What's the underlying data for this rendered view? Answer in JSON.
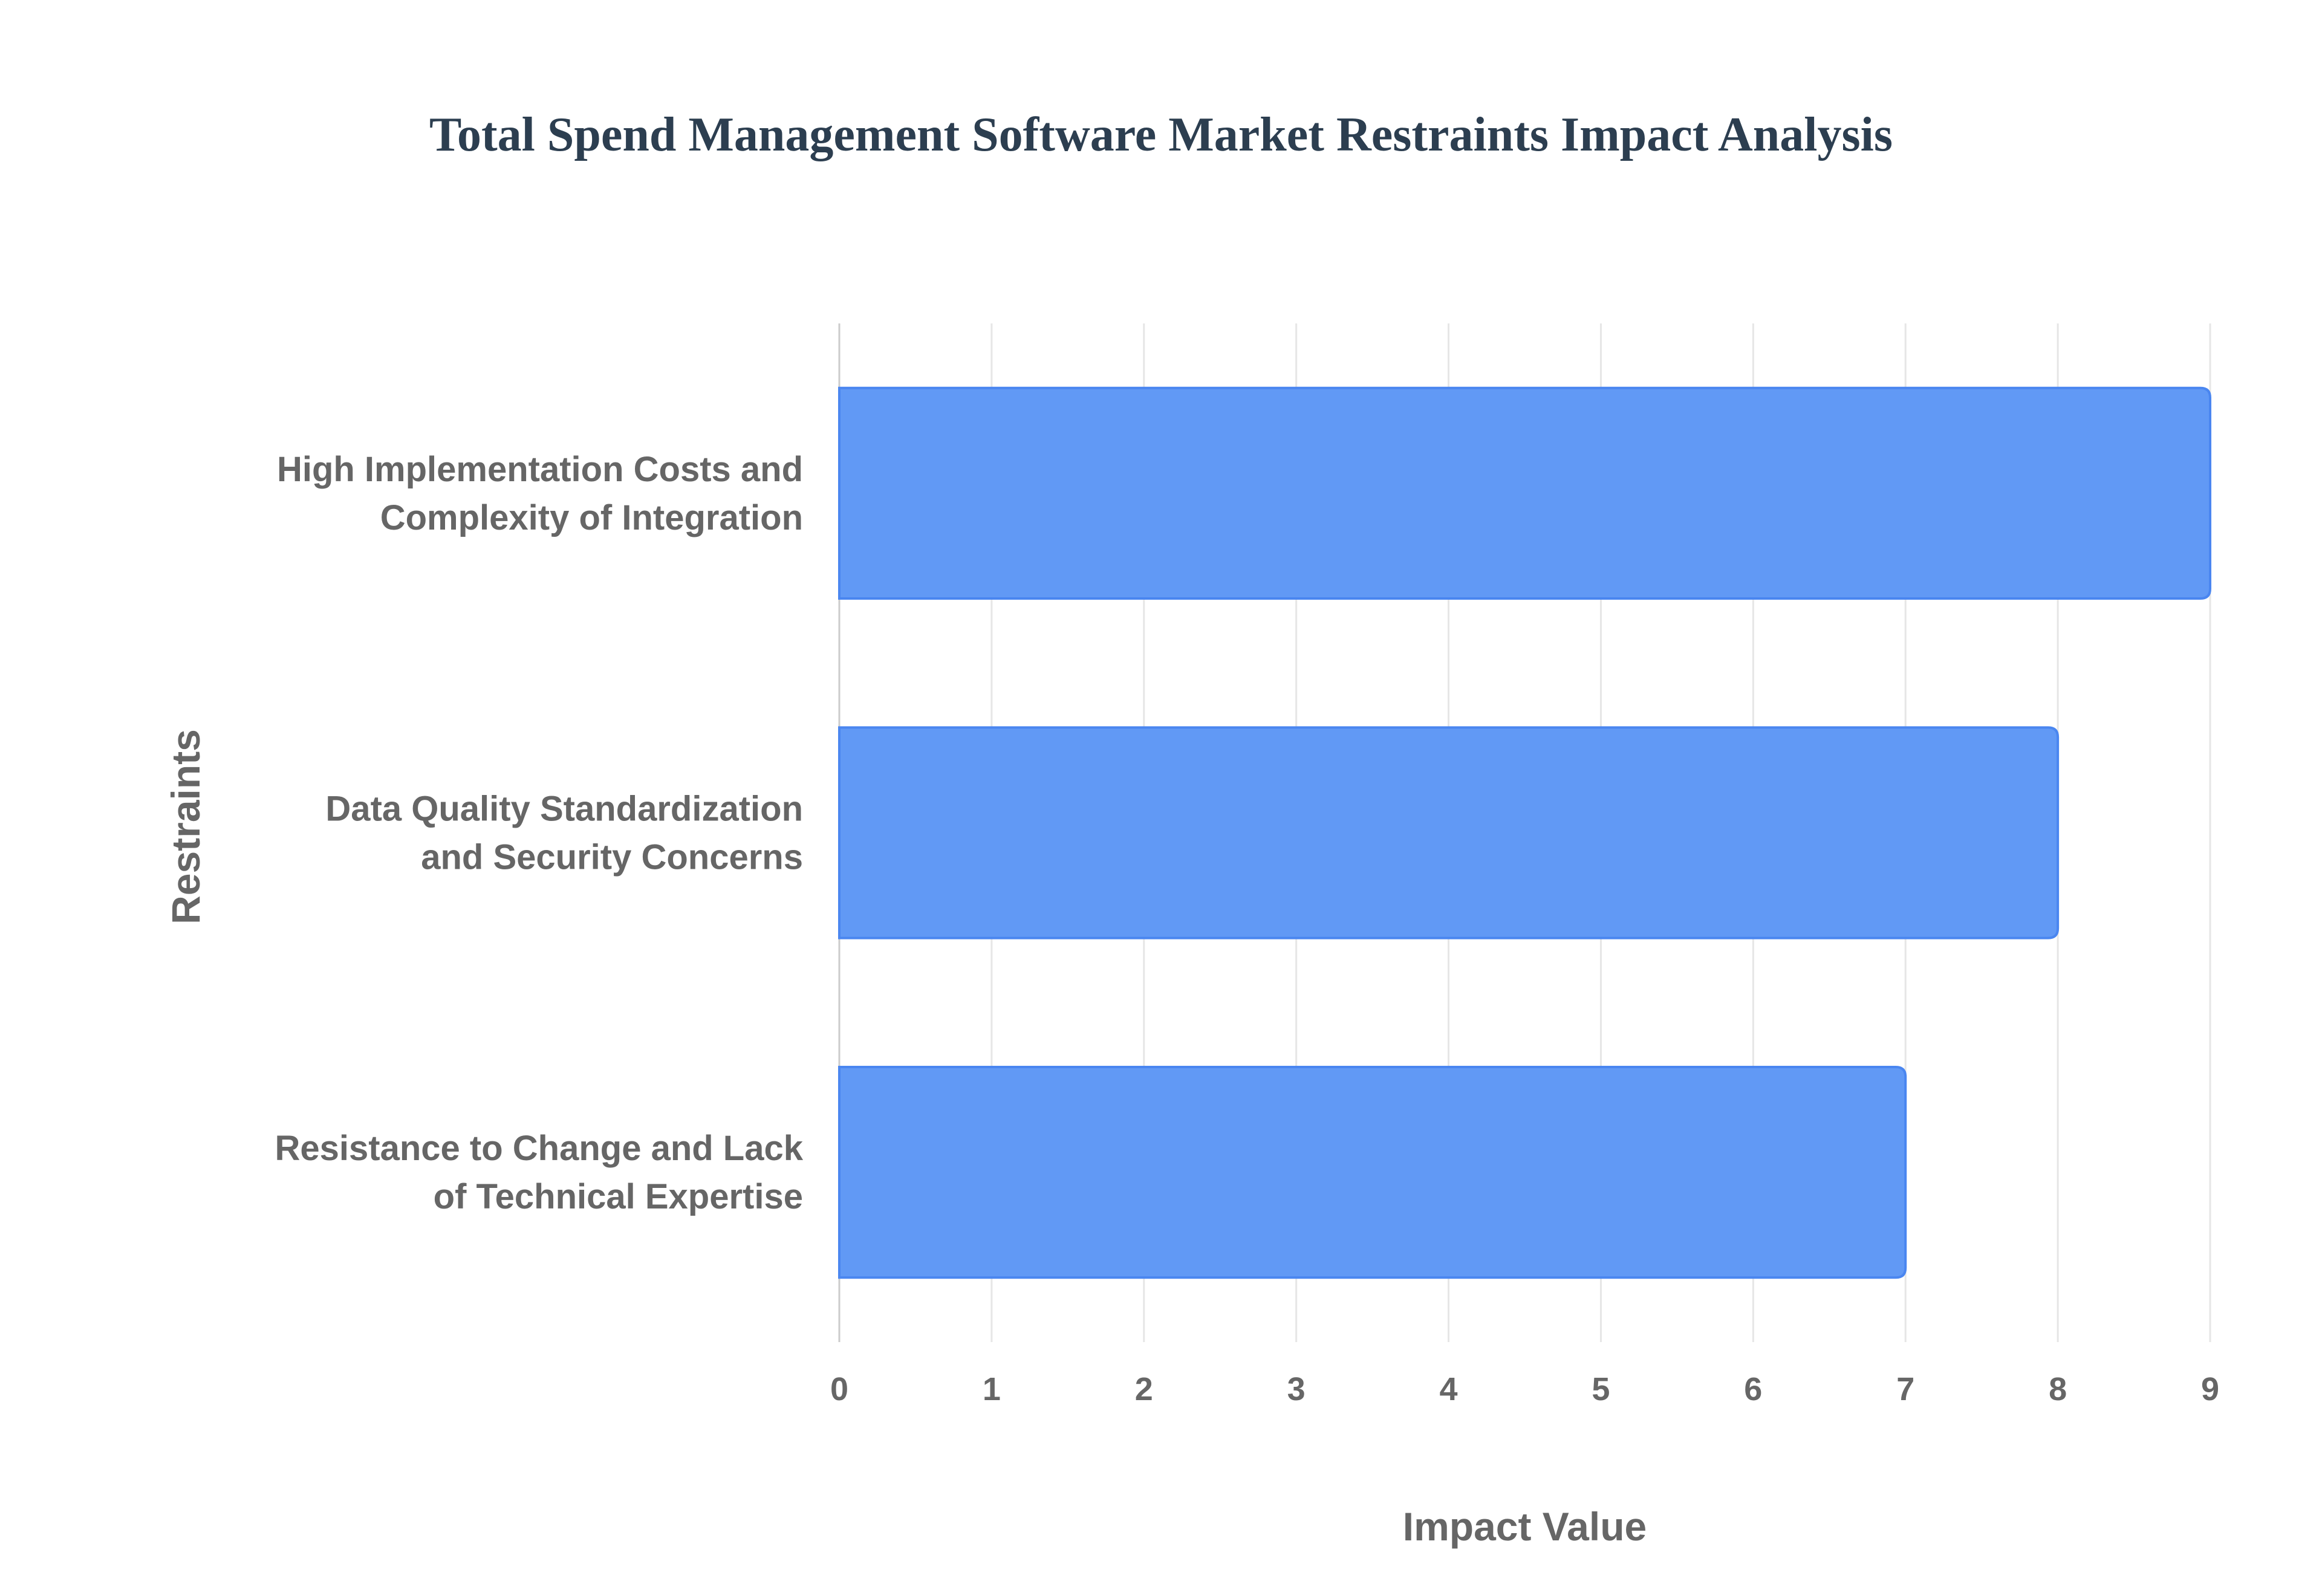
{
  "chart_data": {
    "type": "bar",
    "orientation": "horizontal",
    "title": "Total Spend Management Software Market Restraints Impact Analysis",
    "categories": [
      [
        "High Implementation Costs and",
        "Complexity of Integration"
      ],
      [
        "Data Quality Standardization",
        "and Security Concerns"
      ],
      [
        "Resistance to Change and Lack",
        "of Technical Expertise"
      ]
    ],
    "values": [
      9,
      8,
      7
    ],
    "xlabel": "Impact Value",
    "ylabel": "Restraints",
    "xlim": [
      0,
      9
    ],
    "xticks": [
      "0",
      "1",
      "2",
      "3",
      "4",
      "5",
      "6",
      "7",
      "8",
      "9"
    ],
    "grid": true,
    "legend": "none",
    "colors": {
      "bar_fill": "#6199f5",
      "bar_stroke": "#4a86f0",
      "grid": "#e6e6e6",
      "text": "#666666",
      "title": "#2c3e50"
    }
  }
}
